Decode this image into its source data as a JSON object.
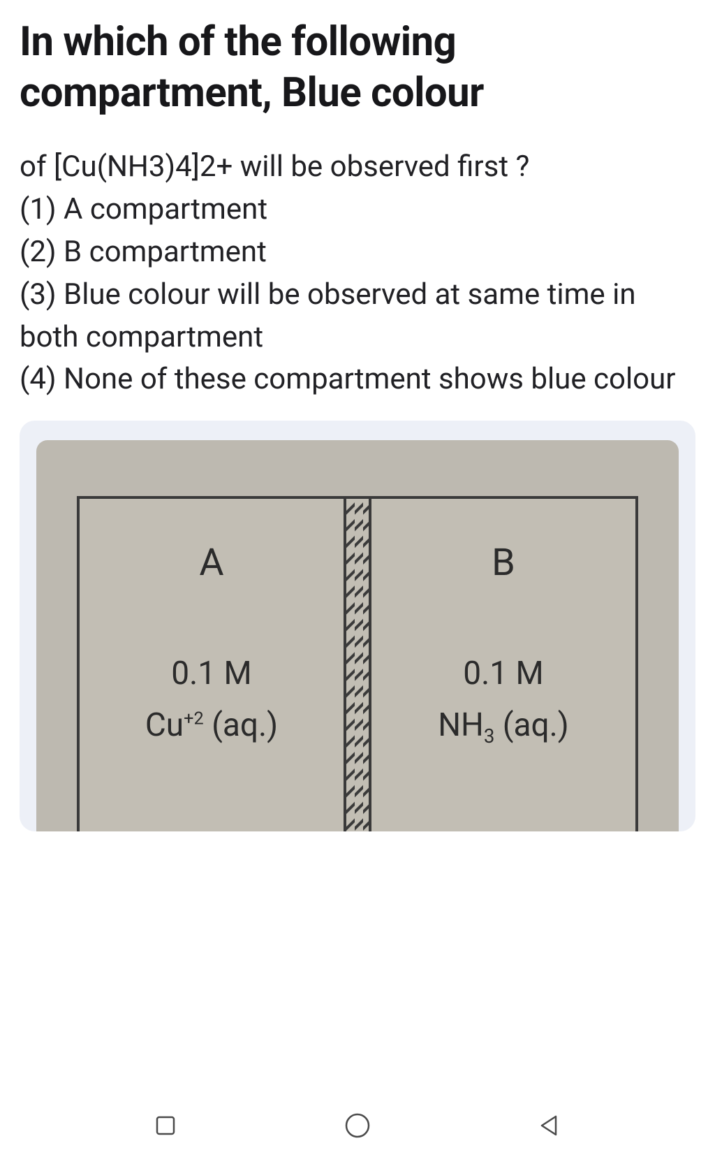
{
  "question": {
    "title_line1": "In which of the following",
    "title_line2": "compartment, Blue colour",
    "prompt": "of [Cu(NH3)4]2+ will be observed first ?",
    "options": [
      "(1) A compartment",
      "(2) B compartment",
      "(3) Blue colour will be observed at same time in",
      "both compartment",
      "(4) None of these compartment shows blue colour"
    ]
  },
  "diagram": {
    "left": {
      "label": "A",
      "conc": "0.1 M",
      "species_html": "Cu<span class='sup'>+2</span> (aq.)"
    },
    "right": {
      "label": "B",
      "conc": "0.1 M",
      "species_html": "NH<span class='sub'>3</span> (aq.)"
    },
    "colors": {
      "card_bg": "#edf0f7",
      "photo_bg": "#bdb9b0",
      "cell_bg": "#c2beb4",
      "border": "#3a3a3a",
      "text": "#2b2b2b"
    }
  },
  "nav": {
    "recent": "recent-apps-icon",
    "home": "home-icon",
    "back": "back-icon",
    "stroke": "#4a4a4a"
  }
}
